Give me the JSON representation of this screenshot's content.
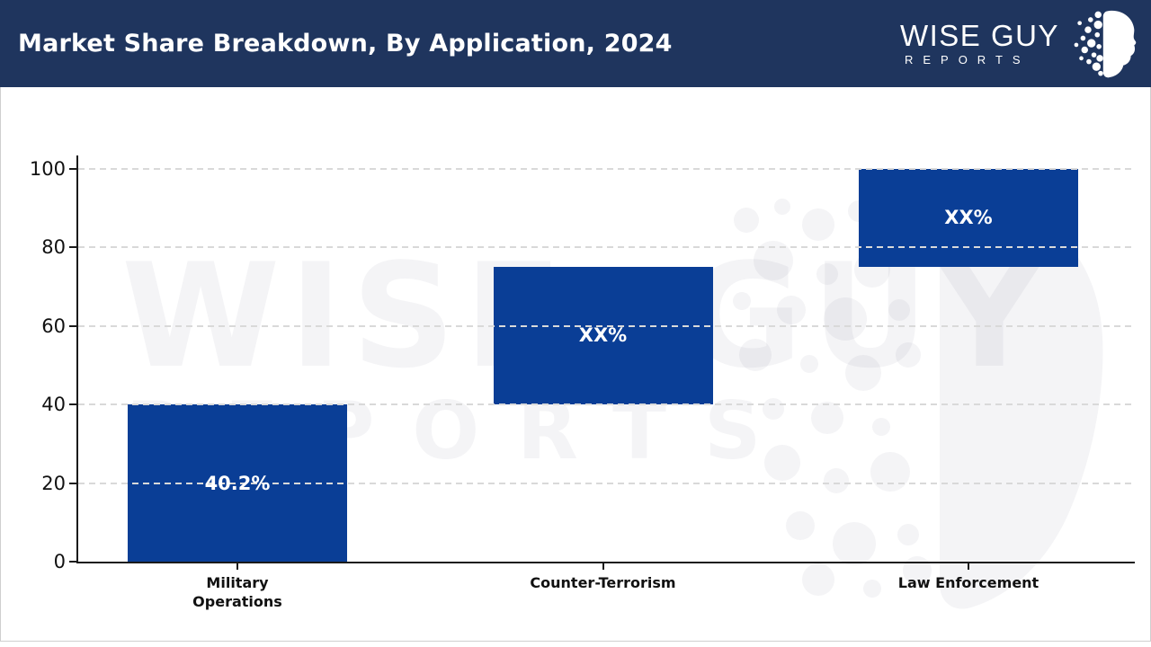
{
  "header": {
    "title": "Market Share Breakdown, By Application, 2024",
    "bg_color": "#1f355e",
    "logo": {
      "wordmark": "WISE GUY",
      "subtitle": "REPORTS"
    }
  },
  "watermark": {
    "line1": "WISE GUY",
    "line2": "REPORTS"
  },
  "chart_data": {
    "type": "bar",
    "subtype": "waterfall",
    "title": "Market Share Breakdown, By Application, 2024",
    "categories": [
      "Military\nOperations",
      "Counter-Terrorism",
      "Law Enforcement"
    ],
    "segments": [
      {
        "category": "Military Operations",
        "start": 0,
        "end": 40,
        "value_label": "40.2%"
      },
      {
        "category": "Counter-Terrorism",
        "start": 40,
        "end": 75,
        "value_label": "XX%"
      },
      {
        "category": "Law Enforcement",
        "start": 75,
        "end": 100,
        "value_label": "XX%"
      }
    ],
    "yticks": [
      0,
      20,
      40,
      60,
      80,
      100
    ],
    "ylim": [
      0,
      103
    ],
    "grid": "horizontal dashed, drawn over bars",
    "legend": "none",
    "bar_color": "#0a3e96",
    "bar_label_color": "#ffffff",
    "gridline_color": "#d9d9d9",
    "axis_color": "#1a1a1a"
  }
}
